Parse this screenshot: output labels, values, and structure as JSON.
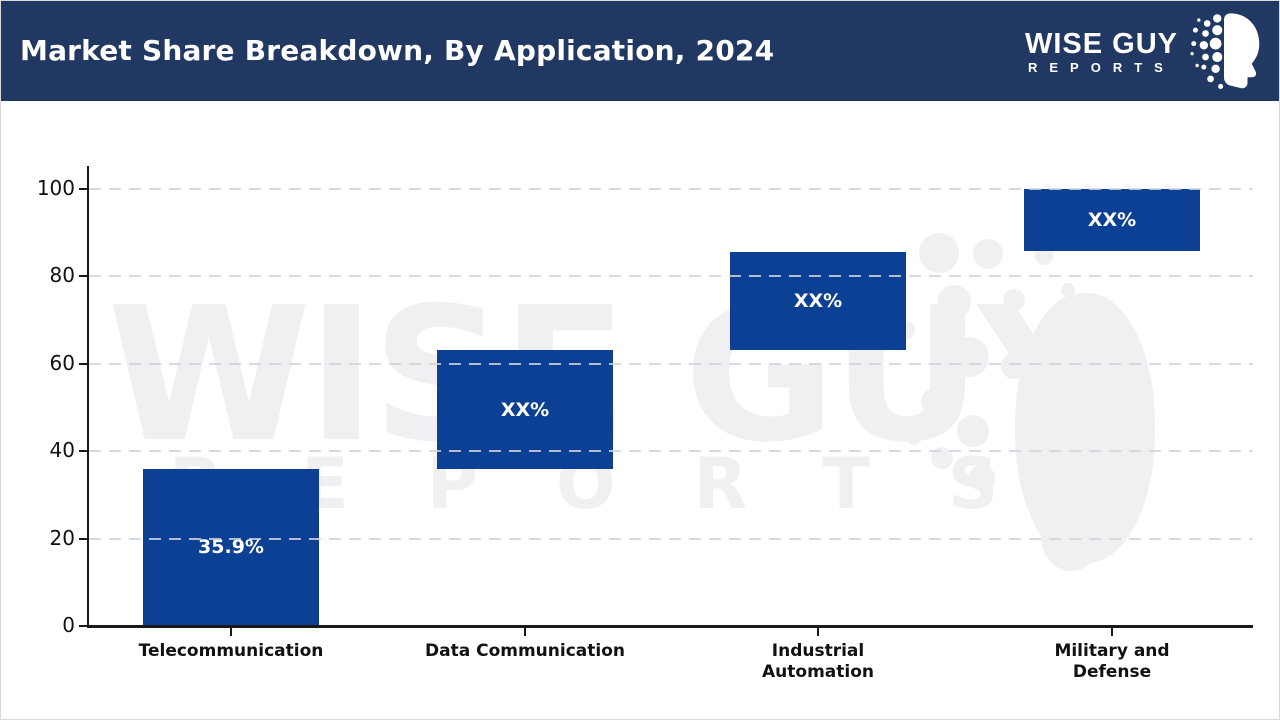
{
  "header": {
    "title": "Market Share Breakdown, By Application, 2024",
    "logo": {
      "line1": "WISE GUY",
      "line2": "REPORTS"
    }
  },
  "watermark": {
    "line1": "WISE GUY",
    "line2": "REPORTS"
  },
  "chart_data": {
    "type": "bar",
    "subtype": "floating-segment-bars-waterfall-style",
    "title": "Market Share Breakdown, By Application, 2024",
    "categories": [
      "Telecommunication",
      "Data Communication",
      "Industrial Automation",
      "Military and Defense"
    ],
    "categories_display": [
      [
        "Telecommunication"
      ],
      [
        "Data Communication"
      ],
      [
        "Industrial",
        "Automation"
      ],
      [
        "Military and",
        "Defense"
      ]
    ],
    "segments": [
      {
        "category": "Telecommunication",
        "start": 0,
        "end": 35.9,
        "label": "35.9%"
      },
      {
        "category": "Data Communication",
        "start": 35.9,
        "end": 63.0,
        "label": "XX%"
      },
      {
        "category": "Industrial Automation",
        "start": 63.0,
        "end": 85.5,
        "label": "XX%"
      },
      {
        "category": "Military and Defense",
        "start": 85.7,
        "end": 100.0,
        "label": "XX%"
      }
    ],
    "ylim": [
      0,
      100
    ],
    "yticks": [
      0,
      20,
      40,
      60,
      80,
      100
    ],
    "grid": "horizontal-dashed",
    "legend": "none",
    "xlabel": "",
    "ylabel": ""
  },
  "colors": {
    "header_bg": "#213863",
    "bar": "#0b4094",
    "bar_label": "#ffffff",
    "grid": "rgba(208,211,218,0.85)",
    "axis": "#1a1a1a",
    "tick_label": "#111111",
    "watermark": "#f0f0f3",
    "frame_border": "#d9d9d9"
  }
}
